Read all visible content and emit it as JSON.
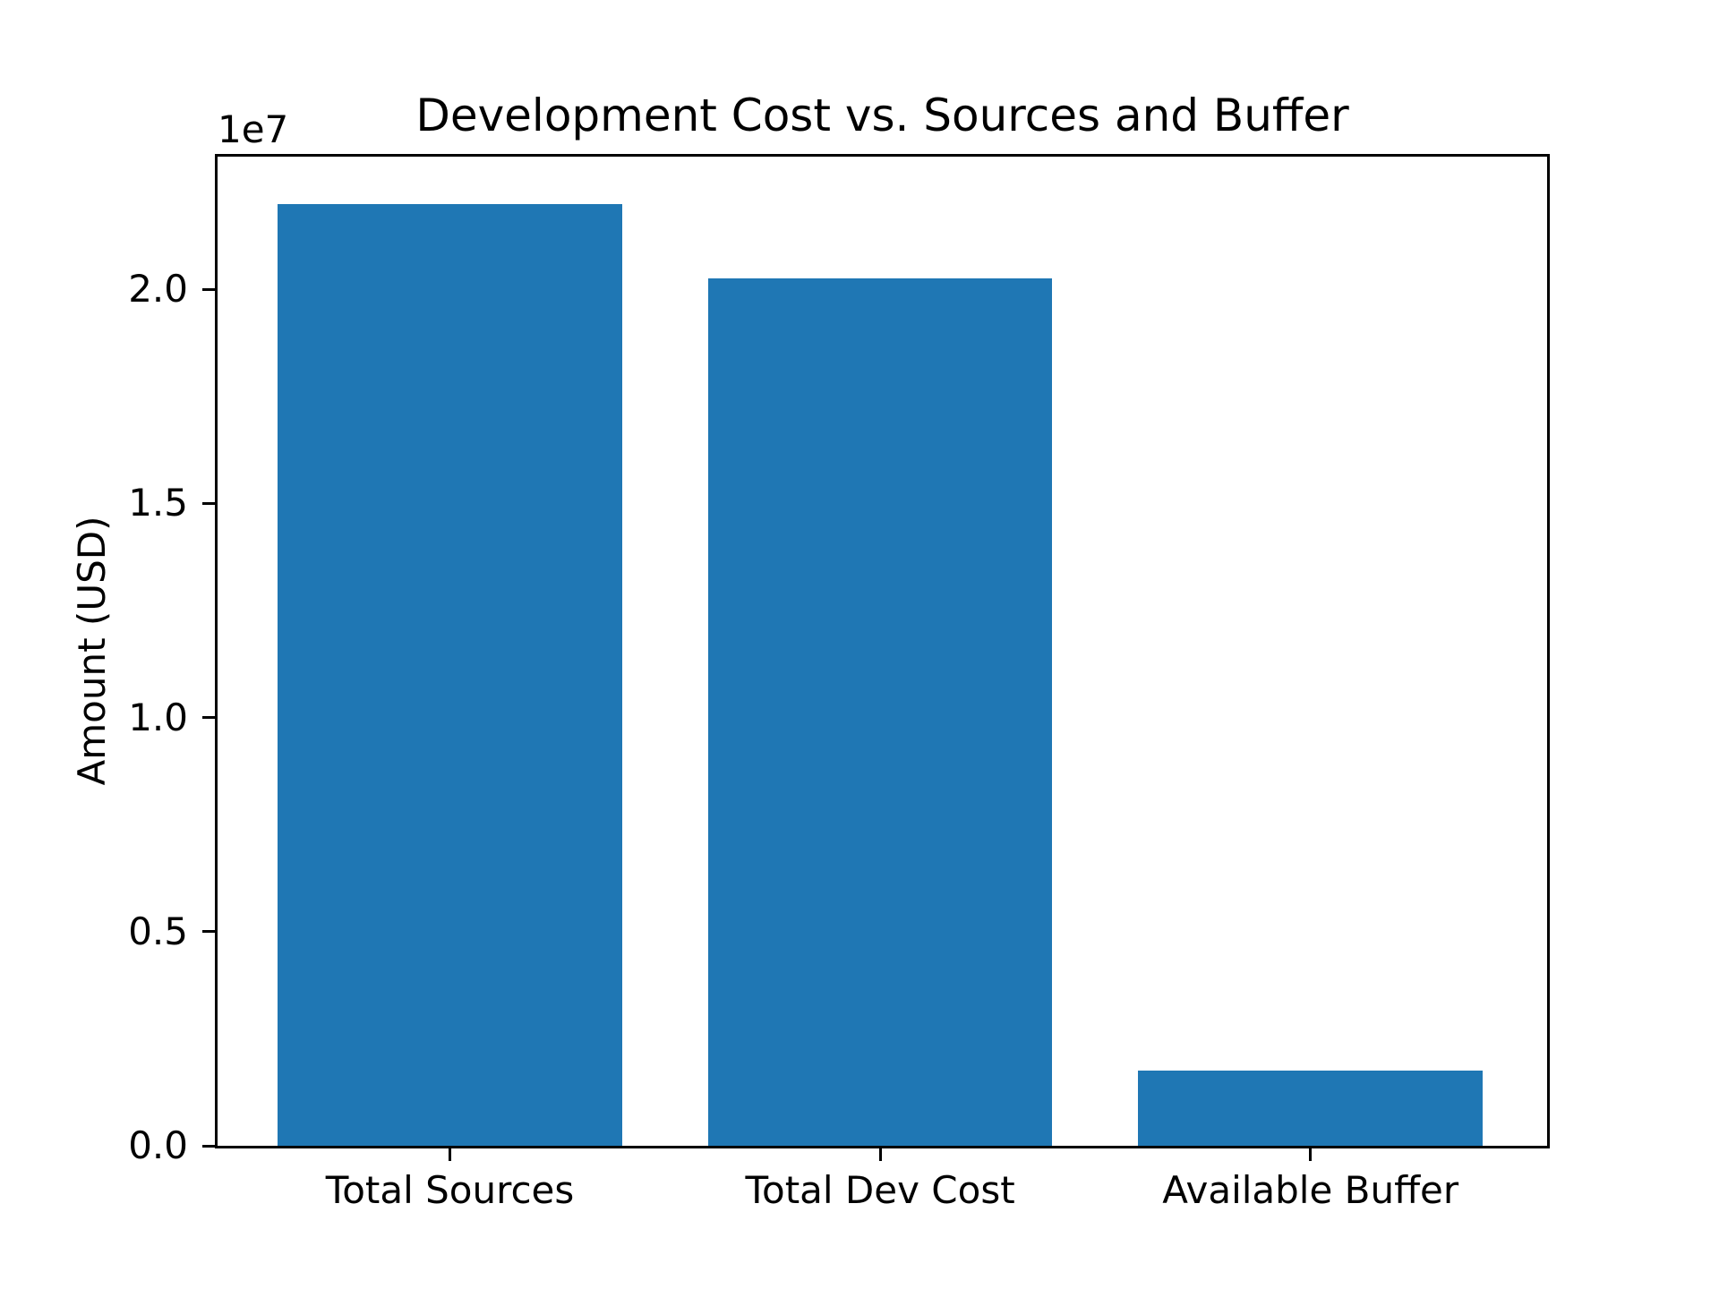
{
  "chart_data": {
    "type": "bar",
    "title": "Development Cost vs. Sources and Buffer",
    "ylabel": "Amount (USD)",
    "y_offset_label": "1e7",
    "categories": [
      "Total Sources",
      "Total Dev Cost",
      "Available Buffer"
    ],
    "values": [
      22000000,
      20250000,
      1750000
    ],
    "bar_color": "#1f77b4",
    "axis_color": "#000000",
    "text_color": "#000000",
    "background_color": "#ffffff",
    "ylim": [
      0,
      23100000
    ],
    "xlim": [
      -0.54,
      2.55
    ],
    "bar_width_units": 0.8,
    "yticks": [
      {
        "value": 0,
        "label": "0.0"
      },
      {
        "value": 5000000,
        "label": "0.5"
      },
      {
        "value": 10000000,
        "label": "1.0"
      },
      {
        "value": 15000000,
        "label": "1.5"
      },
      {
        "value": 20000000,
        "label": "2.0"
      }
    ],
    "grid": false,
    "legend_shown": false
  }
}
